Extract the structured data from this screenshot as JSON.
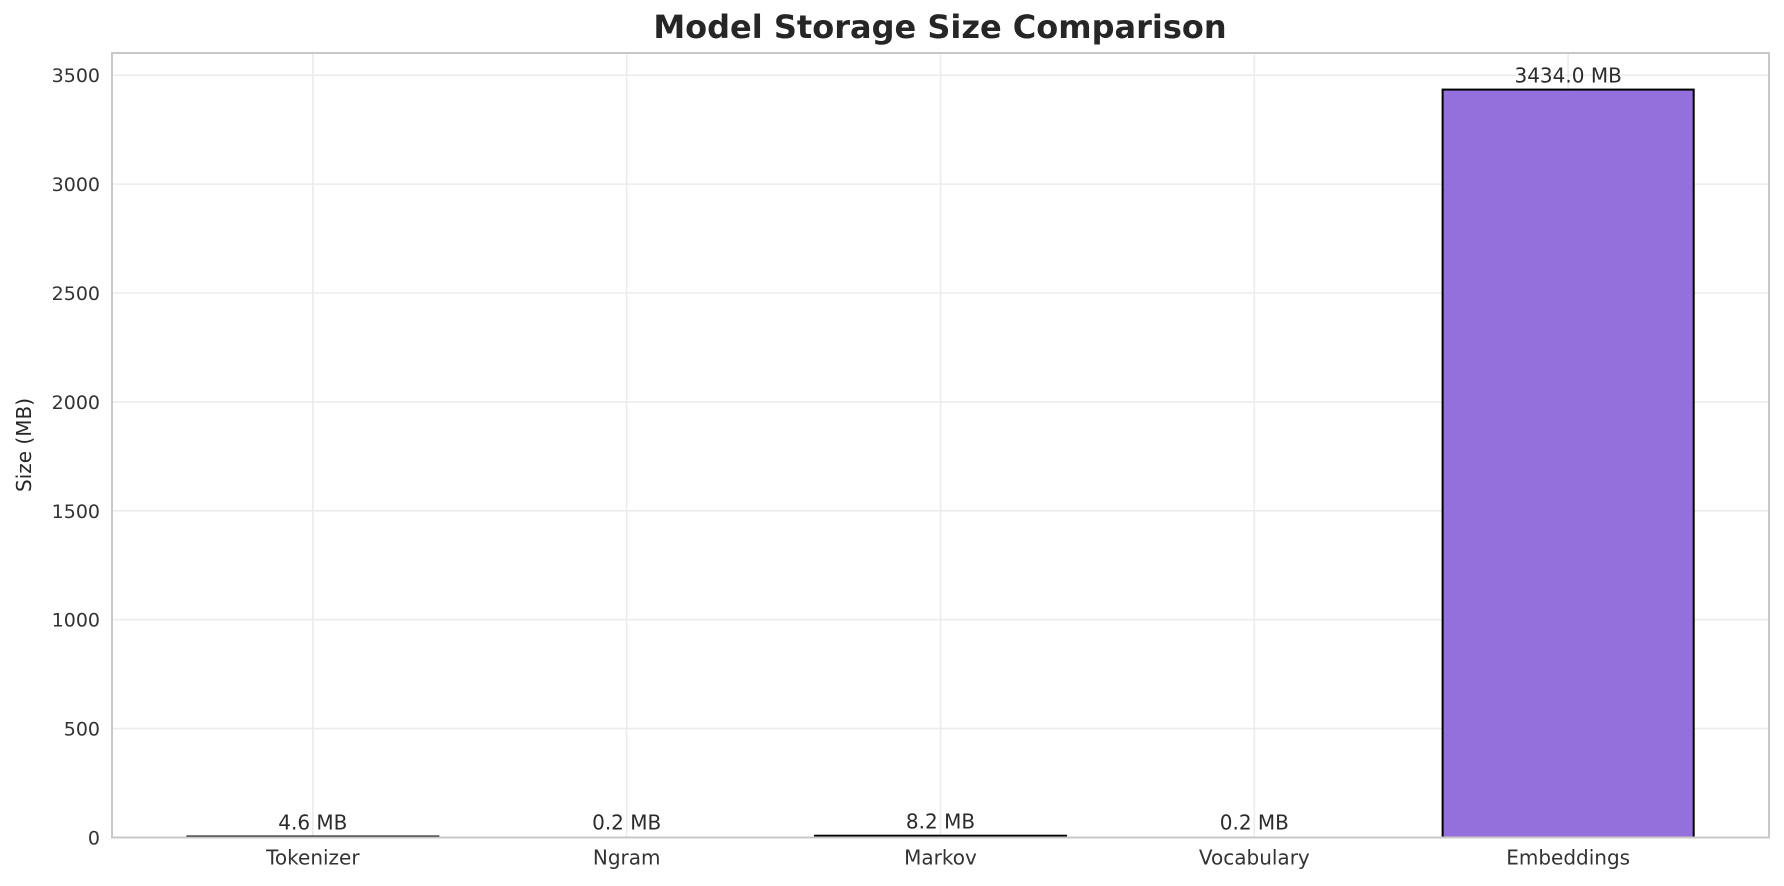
{
  "chart_data": {
    "type": "bar",
    "title": "Model Storage Size Comparison",
    "xlabel": "",
    "ylabel": "Size (MB)",
    "categories": [
      "Tokenizer",
      "Ngram",
      "Markov",
      "Vocabulary",
      "Embeddings"
    ],
    "values": [
      4.6,
      0.2,
      8.2,
      0.2,
      3434.0
    ],
    "value_labels": [
      "4.6 MB",
      "0.2 MB",
      "8.2 MB",
      "0.2 MB",
      "3434.0 MB"
    ],
    "yticks": [
      0,
      500,
      1000,
      1500,
      2000,
      2500,
      3000,
      3500
    ],
    "ytick_labels": [
      "0",
      "500",
      "1000",
      "1500",
      "2000",
      "2500",
      "3000",
      "3500"
    ],
    "ylim": [
      0,
      3602
    ],
    "grid": "both",
    "legend": "none",
    "colors": {
      "bar_fill": "#9370db",
      "bar_edge": "#000000",
      "tiny_bar_line": "#b8b8b8",
      "grid": "#ececec",
      "spine": "#c8c8c8",
      "title_text": "#262626",
      "tick_text": "#333333",
      "background": "#ffffff"
    }
  }
}
